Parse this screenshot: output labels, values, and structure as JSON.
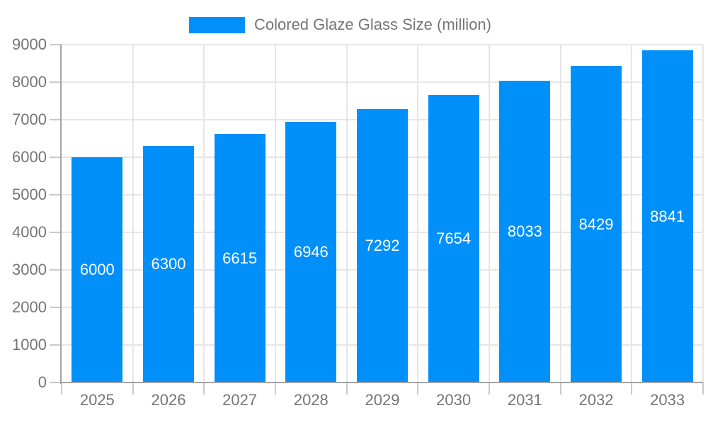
{
  "chart_data": {
    "type": "bar",
    "title": "",
    "legend": "Colored Glaze Glass Size (million)",
    "legend_position": "top",
    "categories": [
      "2025",
      "2026",
      "2027",
      "2028",
      "2029",
      "2030",
      "2031",
      "2032",
      "2033"
    ],
    "series": [
      {
        "name": "Colored Glaze Glass Size (million)",
        "values": [
          6000,
          6300,
          6615,
          6946,
          7292,
          7654,
          8033,
          8429,
          8841
        ]
      }
    ],
    "xlabel": "",
    "ylabel": "",
    "ylim": [
      0,
      9000
    ],
    "ytick_step": 1000,
    "ytick_labels": [
      "0",
      "1000",
      "2000",
      "3000",
      "4000",
      "5000",
      "6000",
      "7000",
      "8000",
      "9000"
    ],
    "grid": true,
    "value_labels": "inside-center",
    "colors": {
      "bar": "#0190fa",
      "axis_text": "#757575",
      "axis_line": "#a3a3a3",
      "gridline": "#e6e6e6",
      "tick": "#c9c9c9",
      "value_label": "#ffffff",
      "background": "#ffffff"
    }
  }
}
